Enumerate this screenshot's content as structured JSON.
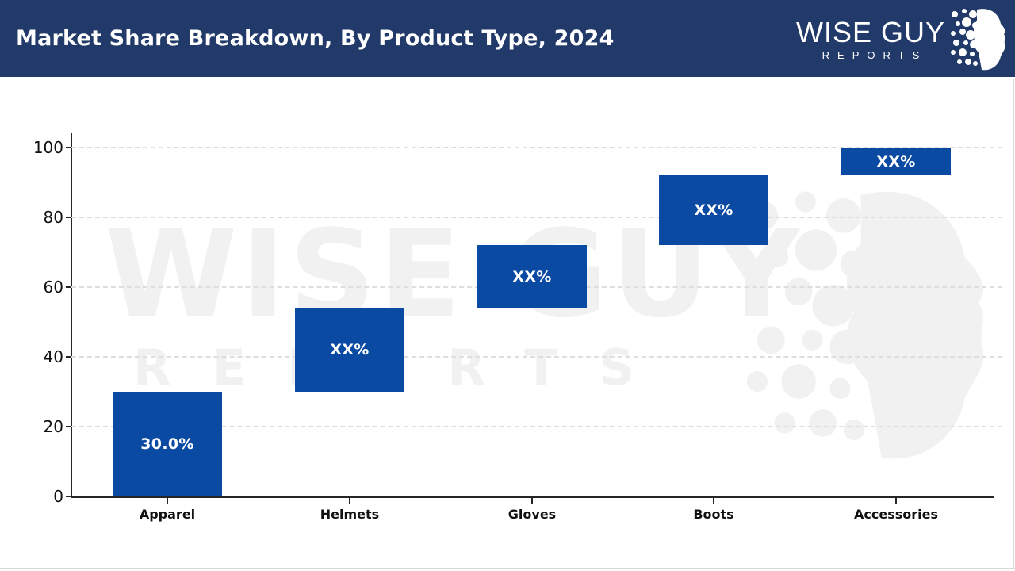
{
  "header": {
    "title": "Market Share Breakdown, By Product Type, 2024",
    "logo": {
      "line1": "WISE GUY",
      "line2": "REPORTS"
    }
  },
  "watermark": {
    "line1": "WISE GUY",
    "line2": "REPORTS"
  },
  "chart_data": {
    "type": "bar",
    "subtype": "waterfall",
    "title": "Market Share Breakdown, By Product Type, 2024",
    "categories": [
      "Apparel",
      "Helmets",
      "Gloves",
      "Boots",
      "Accessories"
    ],
    "series": [
      {
        "name": "Market share (%)",
        "starts": [
          0,
          30,
          54,
          72,
          92
        ],
        "ends": [
          30,
          54,
          72,
          92,
          100
        ]
      }
    ],
    "bar_labels": [
      "30.0%",
      "XX%",
      "XX%",
      "XX%",
      "XX%"
    ],
    "xlabel": "",
    "ylabel": "",
    "yticks": [
      0,
      20,
      40,
      60,
      80,
      100
    ],
    "ylim": [
      0,
      100
    ],
    "grid": "horizontal-dashed",
    "legend": "none",
    "bar_color": "#0b4aa2",
    "bar_label_color": "#ffffff"
  },
  "colors": {
    "header_bg": "#223a69",
    "bar": "#0b4aa2",
    "axis": "#262626",
    "grid": "#dedede",
    "watermark": "#f1f1f1",
    "text": "#111111"
  }
}
